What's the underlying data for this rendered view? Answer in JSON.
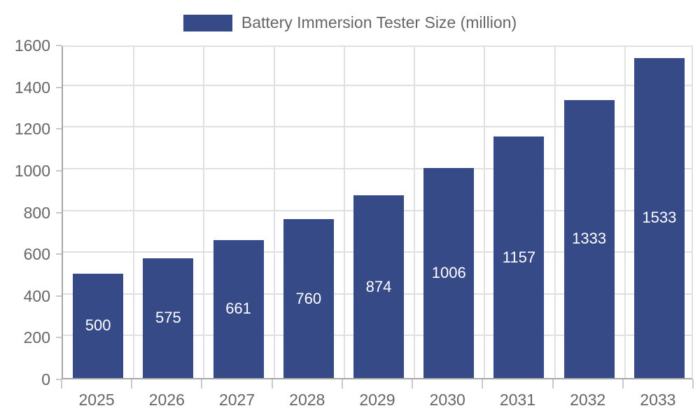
{
  "legend": {
    "label": "Battery Immersion Tester Size (million)"
  },
  "chart_data": {
    "type": "bar",
    "title": "Battery Immersion Tester Size (million)",
    "categories": [
      "2025",
      "2026",
      "2027",
      "2028",
      "2029",
      "2030",
      "2031",
      "2032",
      "2033"
    ],
    "series": [
      {
        "name": "Battery Immersion Tester Size (million)",
        "values": [
          500,
          575,
          661,
          760,
          874,
          1006,
          1157,
          1333,
          1533
        ]
      }
    ],
    "xlabel": "",
    "ylabel": "",
    "ylim": [
      0,
      1600
    ],
    "yticks": [
      0,
      200,
      400,
      600,
      800,
      1000,
      1200,
      1400,
      1600
    ],
    "grid": true,
    "legend_position": "top-center",
    "value_labels": "inside-center",
    "colors": {
      "bar": "#364a87",
      "value_label": "#ffffff",
      "axis_text": "#666666",
      "grid": "#e0e0e0",
      "axis_line": "#a6a6a6",
      "tick": "#c9c9c9",
      "background": "#ffffff"
    }
  }
}
